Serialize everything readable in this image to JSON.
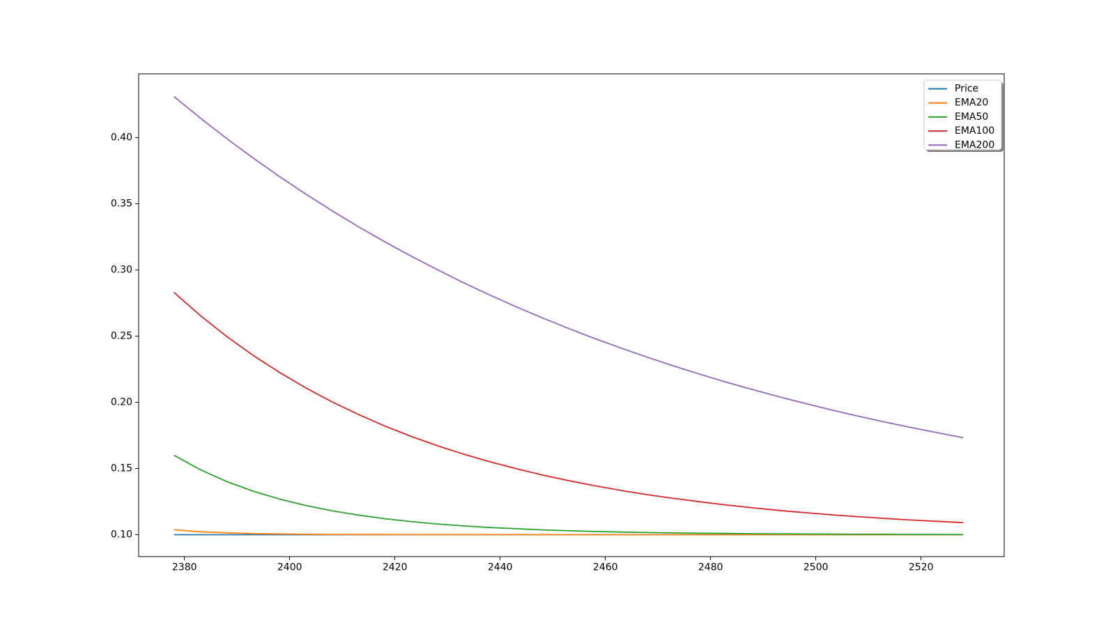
{
  "figure": {
    "background": "#ffffff",
    "axis_color": "#000000"
  },
  "chart_data": {
    "type": "line",
    "title": "",
    "xlabel": "",
    "ylabel": "",
    "grid": false,
    "xlim": [
      2371.3,
      2535.8
    ],
    "ylim": [
      0.0834,
      0.4481
    ],
    "x_ticks": [
      2380,
      2400,
      2420,
      2440,
      2460,
      2480,
      2500,
      2520
    ],
    "x_tick_labels": [
      "2380",
      "2400",
      "2420",
      "2440",
      "2460",
      "2480",
      "2500",
      "2520"
    ],
    "y_ticks": [
      0.1,
      0.15,
      0.2,
      0.25,
      0.3,
      0.35,
      0.4
    ],
    "y_tick_labels": [
      "0.10",
      "0.15",
      "0.20",
      "0.25",
      "0.30",
      "0.35",
      "0.40"
    ],
    "legend": {
      "position": "upper-right",
      "fancybox": true,
      "shadow": true,
      "face_color": "#ffffff",
      "edge_color": "#cccccc",
      "shadow_color": "#7f7f7f"
    },
    "x": [
      2378,
      2383,
      2388,
      2393,
      2398,
      2403,
      2408,
      2413,
      2418,
      2423,
      2428,
      2433,
      2438,
      2443,
      2448,
      2453,
      2458,
      2463,
      2468,
      2473,
      2478,
      2483,
      2488,
      2493,
      2498,
      2503,
      2508,
      2513,
      2518,
      2523,
      2528
    ],
    "series": [
      {
        "name": "Price",
        "color": "#1f77b4",
        "values": [
          0.1,
          0.1,
          0.1,
          0.1,
          0.1,
          0.1,
          0.1,
          0.1,
          0.1,
          0.1,
          0.1,
          0.1,
          0.1,
          0.1,
          0.1,
          0.1,
          0.1,
          0.1,
          0.1,
          0.1,
          0.1,
          0.1,
          0.1,
          0.1,
          0.1,
          0.1,
          0.1,
          0.1,
          0.1,
          0.1,
          0.1
        ]
      },
      {
        "name": "EMA20",
        "color": "#ff7f0e",
        "values": [
          0.1037,
          0.1022,
          0.1014,
          0.1008,
          0.1005,
          0.1003,
          0.1002,
          0.1001,
          0.1001,
          0.1,
          0.1,
          0.1,
          0.1,
          0.1,
          0.1,
          0.1,
          0.1,
          0.1,
          0.1,
          0.1,
          0.1,
          0.1,
          0.1,
          0.1,
          0.1,
          0.1,
          0.1,
          0.1,
          0.1,
          0.1,
          0.1
        ]
      },
      {
        "name": "EMA50",
        "color": "#2ca02c",
        "values": [
          0.16,
          0.1491,
          0.1402,
          0.1329,
          0.127,
          0.1221,
          0.1181,
          0.1148,
          0.1121,
          0.1099,
          0.1081,
          0.1066,
          0.1054,
          0.1045,
          0.1036,
          0.103,
          0.1024,
          0.102,
          0.1016,
          0.1013,
          0.1011,
          0.1009,
          0.1007,
          0.1006,
          0.1005,
          0.1004,
          0.1003,
          0.1003,
          0.1002,
          0.1002,
          0.1001
        ]
      },
      {
        "name": "EMA100",
        "color": "#d62728",
        "values": [
          0.283,
          0.2656,
          0.2498,
          0.2356,
          0.2227,
          0.211,
          0.2004,
          0.1909,
          0.1822,
          0.1744,
          0.1673,
          0.1609,
          0.1551,
          0.1499,
          0.1451,
          0.1408,
          0.1369,
          0.1334,
          0.1302,
          0.1274,
          0.1248,
          0.1224,
          0.1203,
          0.1183,
          0.1166,
          0.115,
          0.1136,
          0.1123,
          0.1111,
          0.1101,
          0.1091
        ]
      },
      {
        "name": "EMA200",
        "color": "#9467bd",
        "values": [
          0.431,
          0.4148,
          0.3993,
          0.3847,
          0.3707,
          0.3575,
          0.3448,
          0.3328,
          0.3214,
          0.3106,
          0.3003,
          0.2904,
          0.2811,
          0.2722,
          0.2638,
          0.2558,
          0.2481,
          0.2409,
          0.234,
          0.2274,
          0.2212,
          0.2152,
          0.2096,
          0.2042,
          0.1991,
          0.1942,
          0.1896,
          0.1852,
          0.181,
          0.1771,
          0.1733
        ]
      }
    ]
  }
}
